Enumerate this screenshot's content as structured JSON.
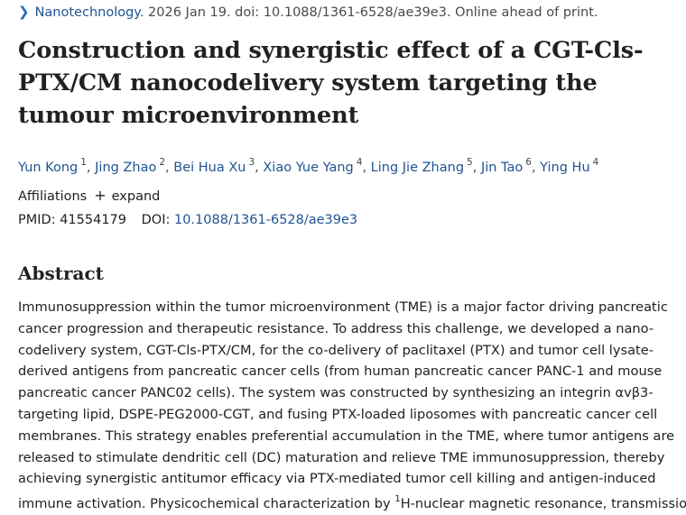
{
  "citation": {
    "journal": "Nanotechnology.",
    "details": "2026 Jan 19. doi: 10.1088/1361-6528/ae39e3. Online ahead of print."
  },
  "title": "Construction and synergistic effect of a CGT-Cls-PTX/CM nanocodelivery system targeting the tumour microenvironment",
  "authors": [
    {
      "name": "Yun Kong",
      "aff": "1"
    },
    {
      "name": "Jing Zhao",
      "aff": "2"
    },
    {
      "name": "Bei Hua Xu",
      "aff": "3"
    },
    {
      "name": "Xiao Yue Yang",
      "aff": "4"
    },
    {
      "name": "Ling Jie Zhang",
      "aff": "5"
    },
    {
      "name": "Jin Tao",
      "aff": "6"
    },
    {
      "name": "Ying Hu",
      "aff": "4"
    }
  ],
  "affiliations": {
    "label": "Affiliations",
    "expand": "expand",
    "icon": "plus-icon"
  },
  "identifiers": {
    "pmid_label": "PMID:",
    "pmid": "41554179",
    "doi_label": "DOI:",
    "doi": "10.1088/1361-6528/ae39e3"
  },
  "abstract": {
    "heading": "Abstract",
    "lines": [
      "Immunosuppression within the tumor microenvironment (TME) is a major factor driving pancreatic",
      "cancer progression and therapeutic resistance. To address this challenge, we developed a nano-",
      "codelivery system, CGT-Cls-PTX/CM, for the co-delivery of paclitaxel (PTX) and tumor cell lysate-",
      "derived antigens from pancreatic cancer cells (from human pancreatic cancer PANC-1 and mouse",
      "pancreatic cancer PANC02 cells). The system was constructed by synthesizing an integrin αvβ3-",
      "targeting lipid, DSPE-PEG2000-CGT, and fusing PTX-loaded liposomes with pancreatic cancer cell",
      "membranes. This strategy enables preferential accumulation in the TME, where tumor antigens are",
      "released to stimulate dendritic cell (DC) maturation and relieve TME immunosuppression, thereby",
      "achieving synergistic antitumor efficacy via PTX-mediated tumor cell killing and antigen-induced",
      "immune activation. Physicochemical characterization by "
    ],
    "last_line_sup": "1",
    "last_line_rest": "H-nuclear magnetic resonance, transmission"
  }
}
